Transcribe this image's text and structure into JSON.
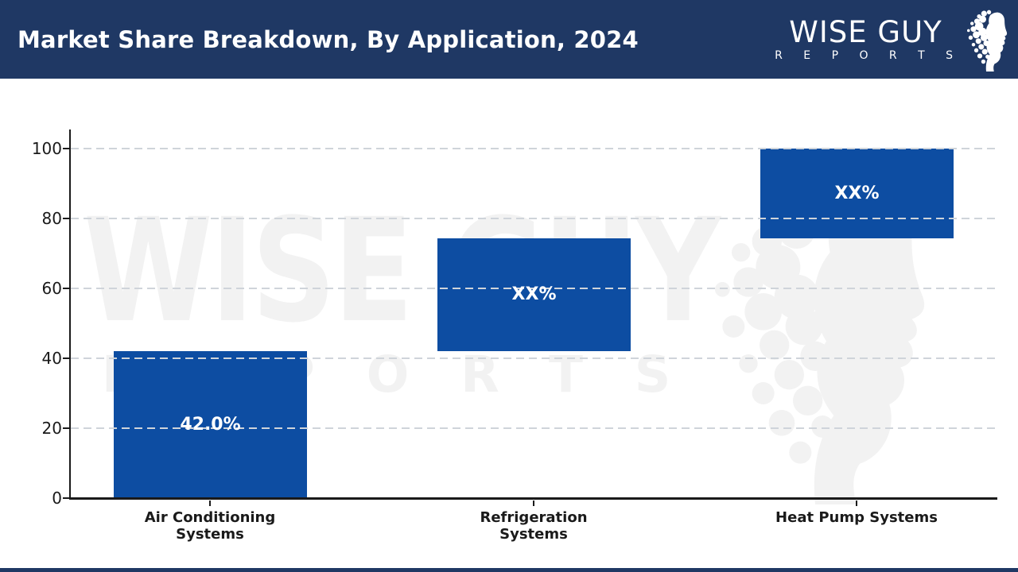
{
  "header": {
    "title": "Market Share Breakdown, By Application, 2024",
    "logo": {
      "line1": "WISE GUY",
      "line2": "R E P O R T S"
    }
  },
  "watermark": {
    "line1": "WISE GUY",
    "line2": "REPORTS"
  },
  "chart_data": {
    "type": "bar",
    "subtype": "waterfall",
    "title": "Market Share Breakdown, By Application, 2024",
    "categories": [
      "Air Conditioning Systems",
      "Refrigeration Systems",
      "Heat Pump Systems"
    ],
    "bars": [
      {
        "category": "Air Conditioning Systems",
        "category_lines": [
          "Air Conditioning",
          "Systems"
        ],
        "base": 0,
        "top": 42,
        "label": "42.0%"
      },
      {
        "category": "Refrigeration Systems",
        "category_lines": [
          "Refrigeration",
          "Systems"
        ],
        "base": 42,
        "top": 74.3,
        "label": "XX%"
      },
      {
        "category": "Heat Pump Systems",
        "category_lines": [
          "Heat Pump Systems"
        ],
        "base": 74.3,
        "top": 100,
        "label": "XX%"
      }
    ],
    "xlabel": "",
    "ylabel": "",
    "ylim": [
      0,
      100
    ],
    "yticks": [
      0,
      20,
      40,
      60,
      80,
      100
    ],
    "grid": "dashed-horizontal",
    "legend": "none"
  },
  "colors": {
    "header_bg": "#1f3864",
    "bar": "#0d4da2",
    "grid": "#cfd4da",
    "axis": "#1a1a1a",
    "watermark": "#f2f2f2",
    "label": "#ffffff"
  }
}
